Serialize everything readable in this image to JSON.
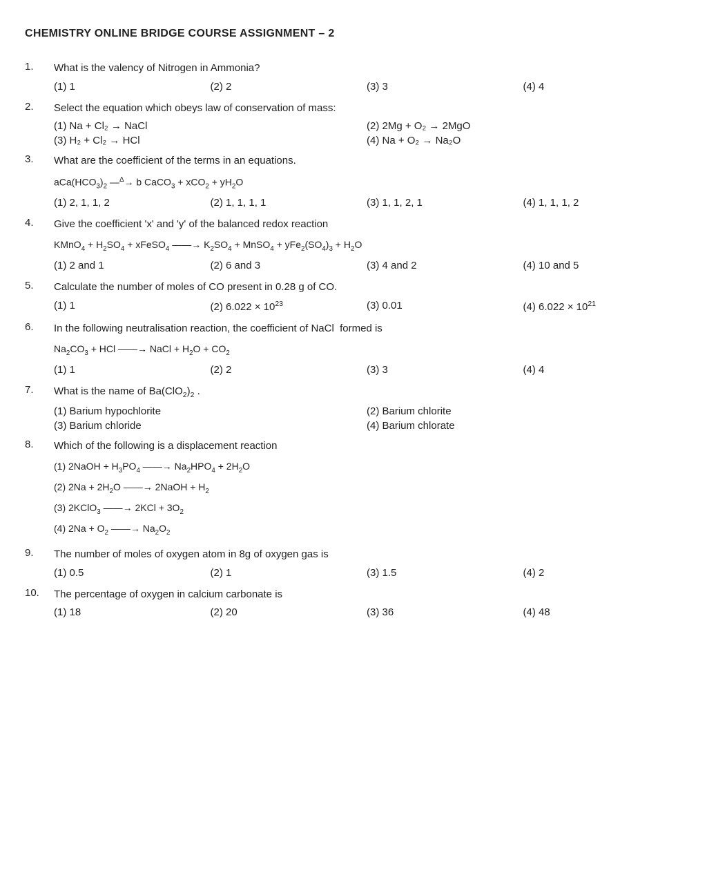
{
  "title": "CHEMISTRY ONLINE BRIDGE COURSE ASSIGNMENT – 2",
  "questions": [
    {
      "num": "1.",
      "text": "What is the valency of Nitrogen in Ammonia?",
      "opts": [
        "(1) 1",
        "(2) 2",
        "(3) 3",
        "(4) 4"
      ]
    },
    {
      "num": "2.",
      "text": "Select the equation which obeys law of conservation of mass:",
      "pairs": [
        [
          "(1) Na + Cl₂ → NaCl",
          "(2) 2Mg + O₂ → 2MgO"
        ],
        [
          "(3) H₂ + Cl₂ → HCl",
          "(4) Na + O₂ → Na₂O"
        ]
      ]
    },
    {
      "num": "3.",
      "text": "What are the coefficient of the terms in an equations.",
      "equation_html": "aCa(HCO<sub>3</sub>)<sub>2</sub> —<sup>Δ</sup>→ b CaCO<sub>3</sub> + xCO<sub>2</sub> + yH<sub>2</sub>O",
      "opts": [
        "(1) 2, 1, 1, 2",
        "(2) 1, 1, 1, 1",
        "(3) 1, 1, 2, 1",
        "(4) 1, 1, 1, 2"
      ]
    },
    {
      "num": "4.",
      "text": "Give the coefficient 'x' and 'y' of the balanced redox reaction",
      "equation_html": "KMnO<sub>4</sub> + H<sub>2</sub>SO<sub>4</sub> + xFeSO<sub>4</sub> ——→ K<sub>2</sub>SO<sub>4</sub> + MnSO<sub>4</sub> + yFe<sub>2</sub>(SO<sub>4</sub>)<sub>3</sub> + H<sub>2</sub>O",
      "opts": [
        "(1) 2 and 1",
        "(2) 6 and 3",
        "(3) 4 and 2",
        "(4) 10 and 5"
      ]
    },
    {
      "num": "5.",
      "text": "Calculate the number of moles of CO present in 0.28 g of CO.",
      "opts_html": [
        "(1) 1",
        "(2) 6.022 × 10<sup>23</sup>",
        "(3) 0.01",
        "(4) 6.022 × 10<sup>21</sup>"
      ]
    },
    {
      "num": "6.",
      "text_html": "In the following neutralisation reaction, the coefficient of NaCl &nbsp;formed is",
      "equation_html": "Na<sub>2</sub>CO<sub>3</sub> + HCl ——→ NaCl + H<sub>2</sub>O + CO<sub>2</sub>",
      "opts": [
        "(1) 1",
        "(2) 2",
        "(3) 3",
        "(4) 4"
      ]
    },
    {
      "num": "7.",
      "text_html": "What is the name of Ba(ClO<sub>2</sub>)<sub>2</sub> .",
      "pairs": [
        [
          "(1) Barium hypochlorite",
          "(2) Barium chlorite"
        ],
        [
          "(3) Barium chloride",
          "(4) Barium chlorate"
        ]
      ]
    },
    {
      "num": "8.",
      "text": "Which of the following is a displacement reaction",
      "vlist_html": [
        "(1) 2NaOH + H<sub>3</sub>PO<sub>4</sub> ——→ Na<sub>2</sub>HPO<sub>4</sub> + 2H<sub>2</sub>O",
        "(2) 2Na + 2H<sub>2</sub>O ——→ 2NaOH + H<sub>2</sub>",
        "(3) 2KClO<sub>3</sub> ——→ 2KCl + 3O<sub>2</sub>",
        "(4) 2Na + O<sub>2</sub> ——→ Na<sub>2</sub>O<sub>2</sub>"
      ]
    },
    {
      "num": "9.",
      "text": "The number of moles of oxygen atom in 8g of oxygen gas is",
      "opts": [
        "(1) 0.5",
        "(2) 1",
        "(3) 1.5",
        "(4) 2"
      ]
    },
    {
      "num": "10.",
      "text": "The percentage of oxygen in calcium carbonate is",
      "opts": [
        "(1) 18",
        "(2) 20",
        "(3) 36",
        "(4) 48"
      ]
    }
  ]
}
